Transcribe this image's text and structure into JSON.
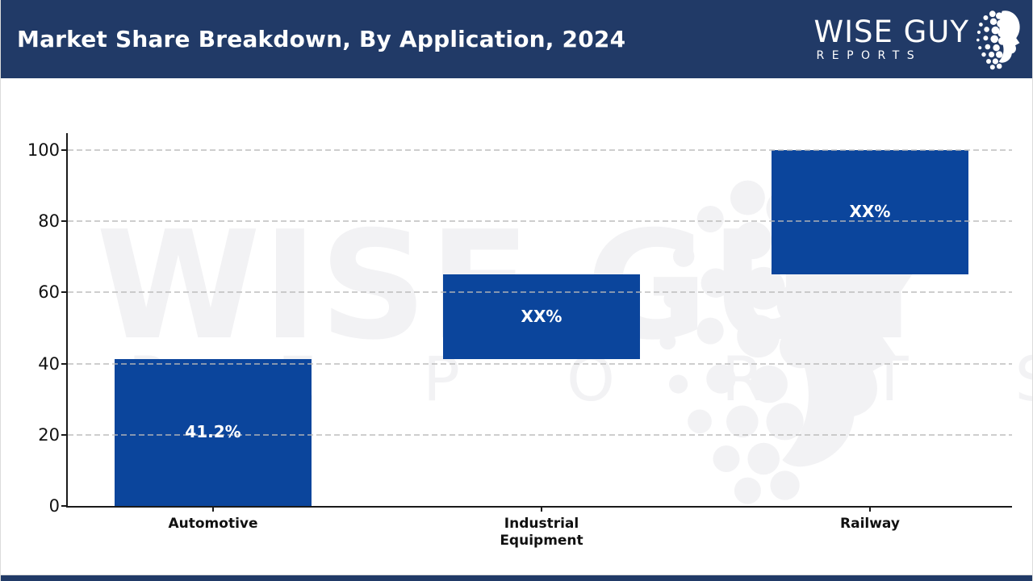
{
  "header": {
    "title": "Market Share Breakdown, By Application, 2024",
    "bg_color": "#213A67",
    "logo": {
      "line1": "WISE GUY",
      "line2": "REPORTS"
    }
  },
  "watermark": {
    "line1": "WISE GUY",
    "line2": "R E P O R T S"
  },
  "chart_data": {
    "type": "bar",
    "subtype": "waterfall",
    "title": "Market Share Breakdown, By Application, 2024",
    "categories": [
      "Automotive",
      "Industrial\nEquipment",
      "Railway"
    ],
    "segments": [
      {
        "category": "Automotive",
        "start": 0,
        "end": 41.2,
        "label": "41.2%"
      },
      {
        "category": "Industrial Equipment",
        "start": 41.2,
        "end": 65,
        "label": "XX%"
      },
      {
        "category": "Railway",
        "start": 65,
        "end": 100,
        "label": "XX%"
      }
    ],
    "ylim": [
      0,
      100
    ],
    "yticks": [
      0,
      20,
      40,
      60,
      80,
      100
    ],
    "grid": true,
    "legend": null,
    "bar_color": "#0B459C",
    "bar_label_color": "#FFFFFF",
    "axis_color": "#1A1A1A",
    "grid_color": "#CFCFCF",
    "tick_label_color": "#111111"
  },
  "footer": {
    "bg_color": "#213A67"
  }
}
